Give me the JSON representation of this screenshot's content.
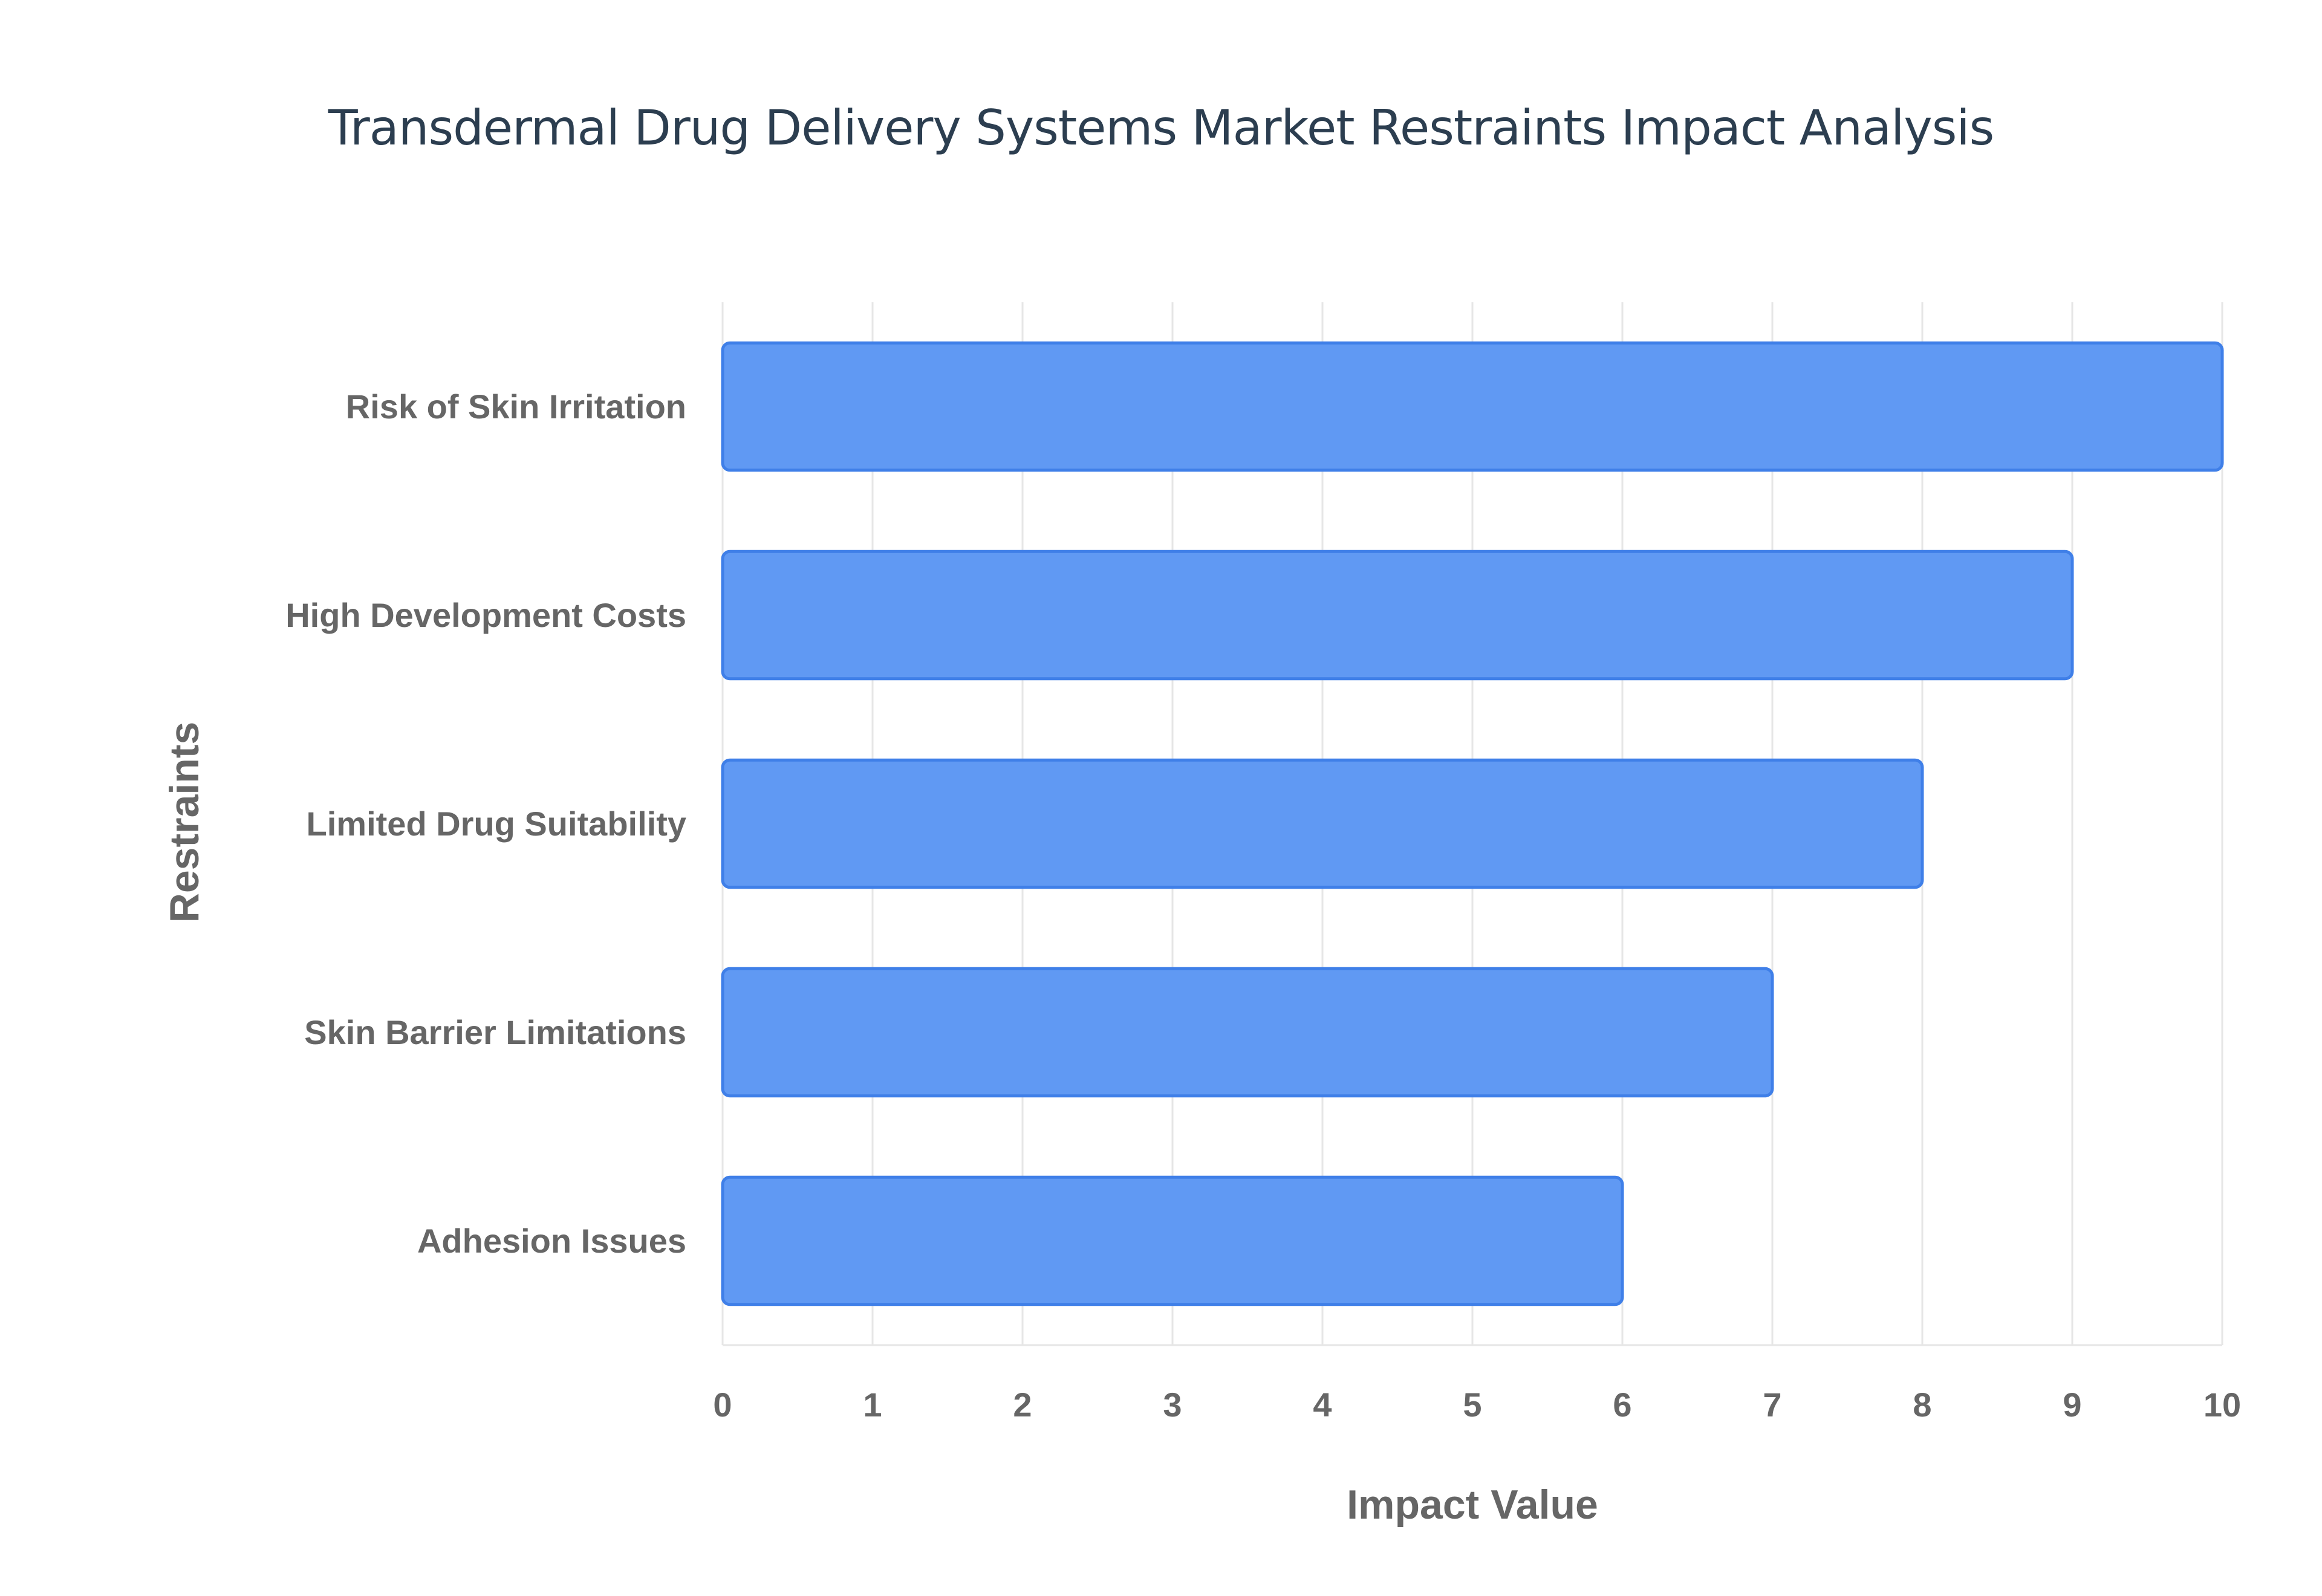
{
  "chart_data": {
    "type": "bar",
    "orientation": "horizontal",
    "title": "Transdermal Drug Delivery Systems Market Restraints Impact Analysis",
    "xlabel": "Impact Value",
    "ylabel": "Restraints",
    "categories": [
      "Risk of Skin Irritation",
      "High Development Costs",
      "Limited Drug Suitability",
      "Skin Barrier Limitations",
      "Adhesion Issues"
    ],
    "values": [
      10,
      9,
      8,
      7,
      6
    ],
    "xlim": [
      0,
      10
    ],
    "x_ticks": [
      "0",
      "1",
      "2",
      "3",
      "4",
      "5",
      "6",
      "7",
      "8",
      "9",
      "10"
    ],
    "grid": true,
    "legend": false,
    "colors": {
      "bar_fill": "#6099f3",
      "bar_stroke": "#3f7fe8",
      "grid": "#e6e6e6",
      "tick_text": "#666666",
      "title_text": "#2c3e50"
    }
  }
}
